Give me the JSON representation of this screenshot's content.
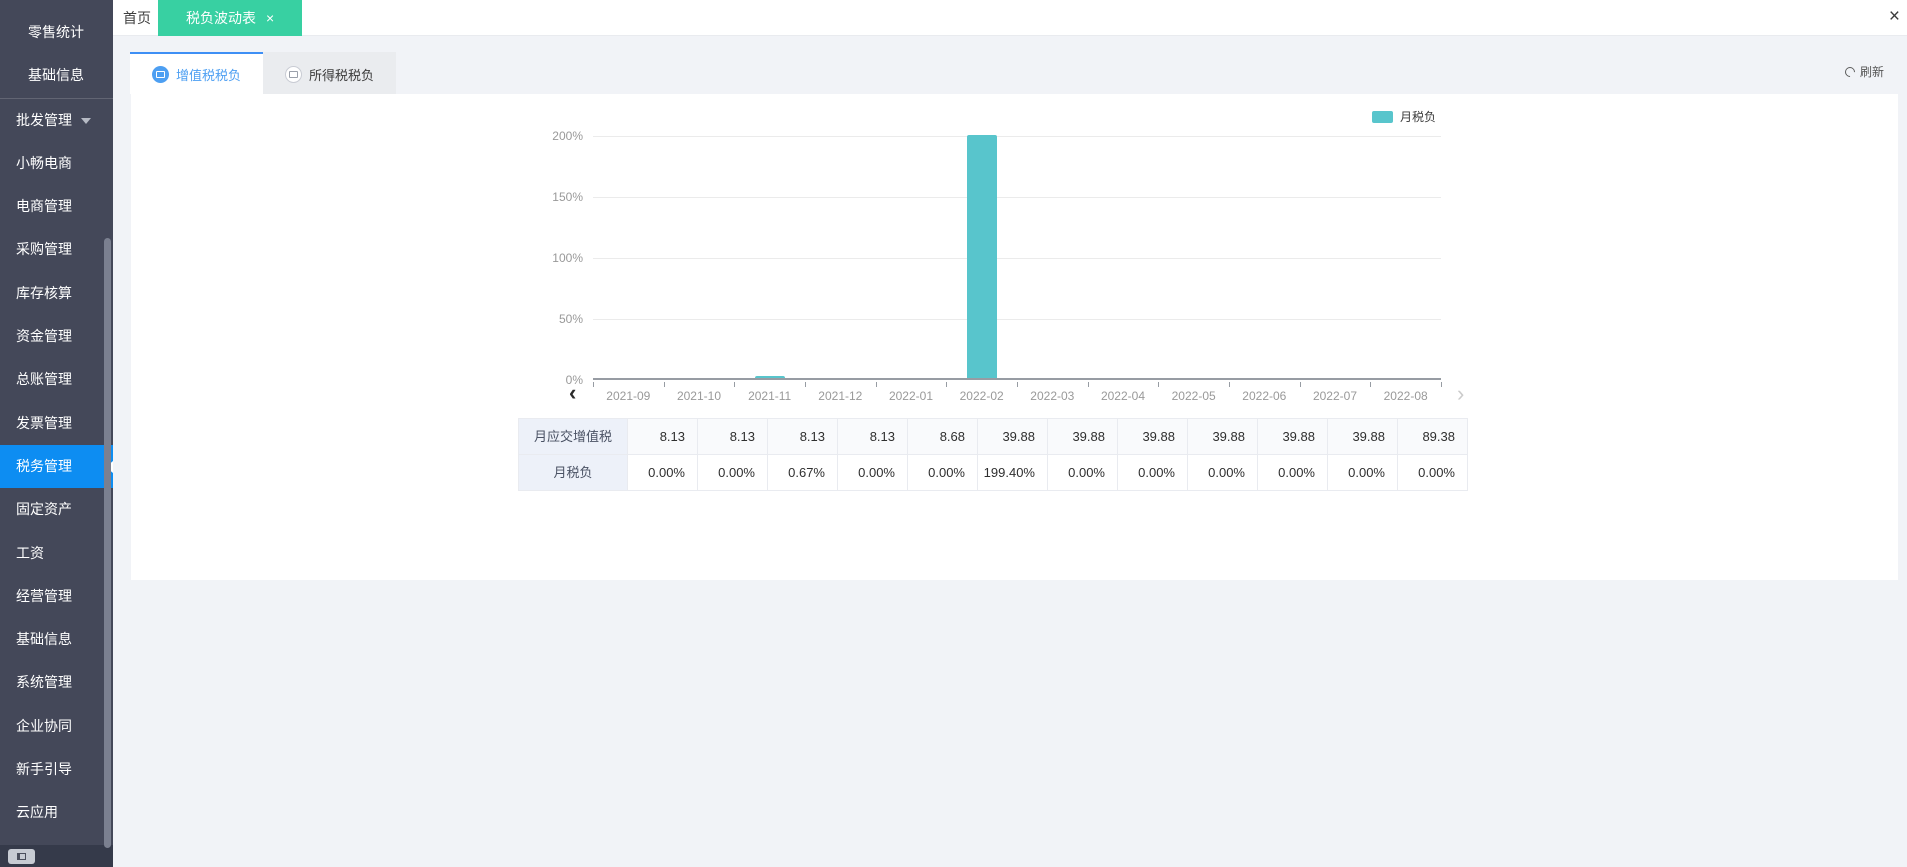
{
  "icons": {
    "close": "×",
    "tab_close": "×",
    "prev": "‹",
    "next": "›"
  },
  "sidebar": {
    "items": [
      {
        "label": "零售统计",
        "indent": true
      },
      {
        "label": "基础信息",
        "indent": true
      },
      {
        "divider": true
      },
      {
        "label": "批发管理",
        "caret": true
      },
      {
        "label": "小畅电商"
      },
      {
        "label": "电商管理"
      },
      {
        "label": "采购管理"
      },
      {
        "label": "库存核算"
      },
      {
        "label": "资金管理"
      },
      {
        "label": "总账管理"
      },
      {
        "label": "发票管理"
      },
      {
        "label": "税务管理",
        "active": true
      },
      {
        "label": "固定资产"
      },
      {
        "label": "工资"
      },
      {
        "label": "经营管理"
      },
      {
        "label": "基础信息"
      },
      {
        "label": "系统管理"
      },
      {
        "label": "企业协同"
      },
      {
        "label": "新手引导"
      },
      {
        "label": "云应用"
      }
    ]
  },
  "tabbar": {
    "tabs": [
      {
        "label": "首页",
        "active": false,
        "closable": false
      },
      {
        "label": "税负波动表",
        "active": true,
        "closable": true
      }
    ]
  },
  "subtabs": [
    {
      "label": "增值税税负",
      "active": true
    },
    {
      "label": "所得税税负",
      "active": false
    }
  ],
  "toolbar": {
    "refresh_label": "刷新"
  },
  "chart_data": {
    "type": "bar",
    "title": "",
    "categories": [
      "2021-09",
      "2021-10",
      "2021-11",
      "2021-12",
      "2022-01",
      "2022-02",
      "2022-03",
      "2022-04",
      "2022-05",
      "2022-06",
      "2022-07",
      "2022-08"
    ],
    "series": [
      {
        "name": "月税负",
        "values": [
          0,
          0,
          0.67,
          0,
          0,
          199.4,
          0,
          0,
          0,
          0,
          0,
          0
        ]
      }
    ],
    "yticks": [
      "0%",
      "50%",
      "100%",
      "150%",
      "200%"
    ],
    "ylim": [
      0,
      200
    ],
    "xlabel": "",
    "ylabel": "",
    "grid": true,
    "legend_position": "top-right",
    "bar_color": "#58c5cc",
    "paginated": true
  },
  "table": {
    "rows": [
      {
        "header": "月应交增值税",
        "values": [
          "8.13",
          "8.13",
          "8.13",
          "8.13",
          "8.68",
          "39.88",
          "39.88",
          "39.88",
          "39.88",
          "39.88",
          "39.88",
          "89.38"
        ]
      },
      {
        "header": "月税负",
        "values": [
          "0.00%",
          "0.00%",
          "0.67%",
          "0.00%",
          "0.00%",
          "199.40%",
          "0.00%",
          "0.00%",
          "0.00%",
          "0.00%",
          "0.00%",
          "0.00%"
        ]
      }
    ]
  },
  "colors": {
    "active_tab_green": "#38d0a2",
    "sidebar_active_blue": "#0d8df2",
    "subtab_blue": "#4d9ff2",
    "bar_teal": "#58c5cc",
    "sidebar_bg": "#444859"
  }
}
